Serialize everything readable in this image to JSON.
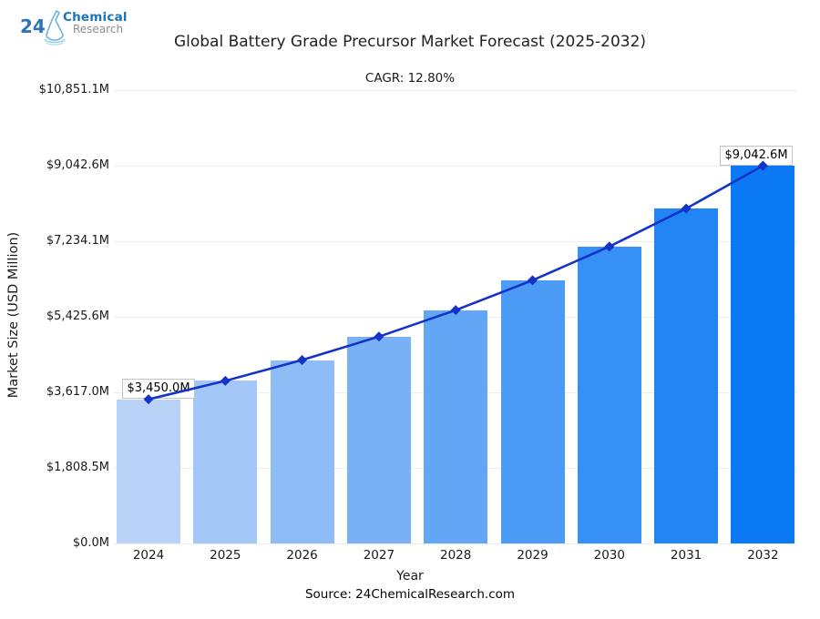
{
  "logo": {
    "number": "24",
    "line1": "Chemical",
    "line2": "Research"
  },
  "header": {
    "title": "Global Battery Grade Precursor Market Forecast (2025-2032)",
    "subtitle": "CAGR: 12.80%"
  },
  "footer": {
    "source": "Source: 24ChemicalResearch.com"
  },
  "colors": {
    "grid": "#ececec",
    "text": "#1a1a1a",
    "logo_blue": "#1b74b8",
    "logo_gray": "#8a8f94",
    "annotation_border": "#c3c3c3"
  },
  "chart_data": {
    "type": "bar",
    "overlay": "line",
    "title": "Global Battery Grade Precursor Market Forecast (2025-2032)",
    "subtitle": "CAGR: 12.80%",
    "cagr_percent": 12.8,
    "xlabel": "Year",
    "ylabel": "Market Size (USD Million)",
    "categories": [
      "2024",
      "2025",
      "2026",
      "2027",
      "2028",
      "2029",
      "2030",
      "2031",
      "2032"
    ],
    "values": [
      3450.0,
      3891.6,
      4389.7,
      4951.6,
      5585.4,
      6300.3,
      7106.8,
      8016.4,
      9042.6
    ],
    "series": [
      {
        "name": "Market Size (bars)",
        "type": "bar",
        "values": [
          3450.0,
          3891.6,
          4389.7,
          4951.6,
          5585.4,
          6300.3,
          7106.8,
          8016.4,
          9042.6
        ]
      },
      {
        "name": "Market Size (trend line)",
        "type": "line",
        "values": [
          3450.0,
          3891.6,
          4389.7,
          4951.6,
          5585.4,
          6300.3,
          7106.8,
          8016.4,
          9042.6
        ]
      }
    ],
    "ylim": [
      0,
      10851.1
    ],
    "yticks": [
      {
        "value": 0.0,
        "label": "$0.0M"
      },
      {
        "value": 1808.5,
        "label": "$1,808.5M"
      },
      {
        "value": 3617.0,
        "label": "$3,617.0M"
      },
      {
        "value": 5425.6,
        "label": "$5,425.6M"
      },
      {
        "value": 7234.1,
        "label": "$7,234.1M"
      },
      {
        "value": 9042.6,
        "label": "$9,042.6M"
      },
      {
        "value": 10851.1,
        "label": "$10,851.1M"
      }
    ],
    "annotations": [
      {
        "category": "2024",
        "label": "$3,450.0M"
      },
      {
        "category": "2032",
        "label": "$9,042.6M"
      }
    ],
    "bar_colors": [
      "#b9d2f8",
      "#a3c7f7",
      "#8ebcf7",
      "#78b1f6",
      "#62a6f6",
      "#4c9bf5",
      "#3790f5",
      "#2185f4",
      "#0b79f3"
    ],
    "line_color": "#1433c8",
    "marker": "diamond",
    "grid": true,
    "legend": false
  }
}
